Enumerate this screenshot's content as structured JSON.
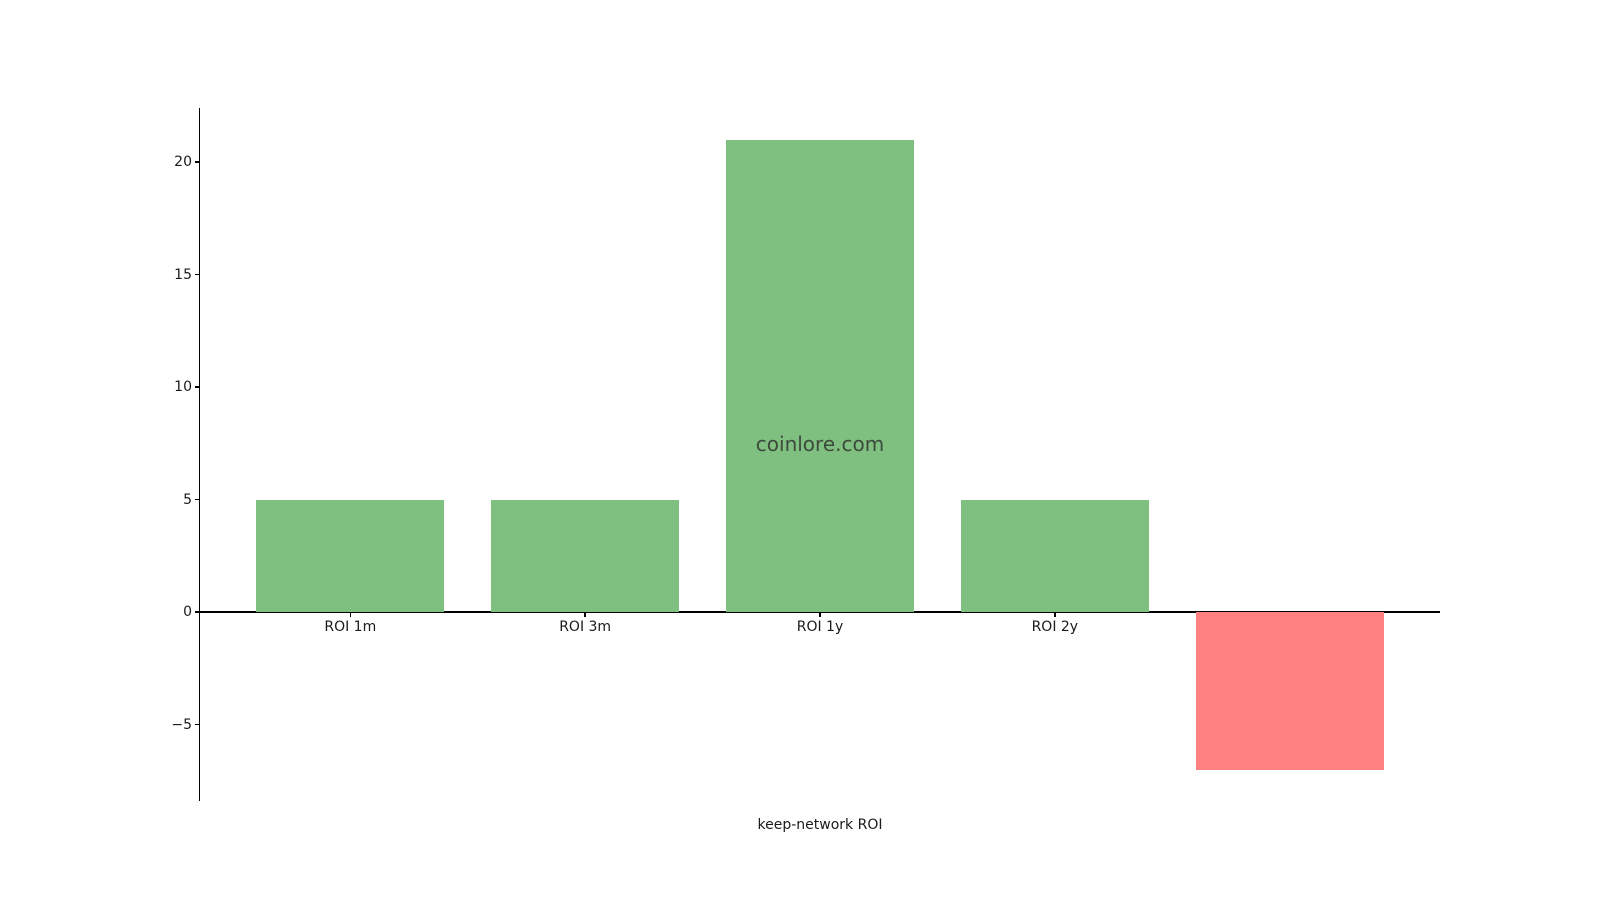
{
  "page": {
    "background_color": "#ffffff"
  },
  "chart_data": {
    "type": "bar",
    "title": "keep-network ROI",
    "title_position": "bottom",
    "watermark": "coinlore.com",
    "categories": [
      "ROI 1m",
      "ROI 3m",
      "ROI 1y",
      "ROI 2y",
      ""
    ],
    "values": [
      5,
      5,
      21,
      5,
      -7
    ],
    "yticks": [
      20,
      15,
      10,
      5,
      0,
      -5
    ],
    "ylim": [
      -8.4,
      22.4
    ],
    "xlim": [
      -0.64,
      4.64
    ],
    "bar_width": 0.8,
    "grid": false,
    "legend": "none",
    "xlabel": "",
    "ylabel": "",
    "colors": {
      "positive_bar": "#7fbf7f",
      "negative_bar": "#ff8080",
      "axis": "#000000",
      "tick_text": "#1a1a1a",
      "watermark_text": "#3d4a3d"
    }
  }
}
